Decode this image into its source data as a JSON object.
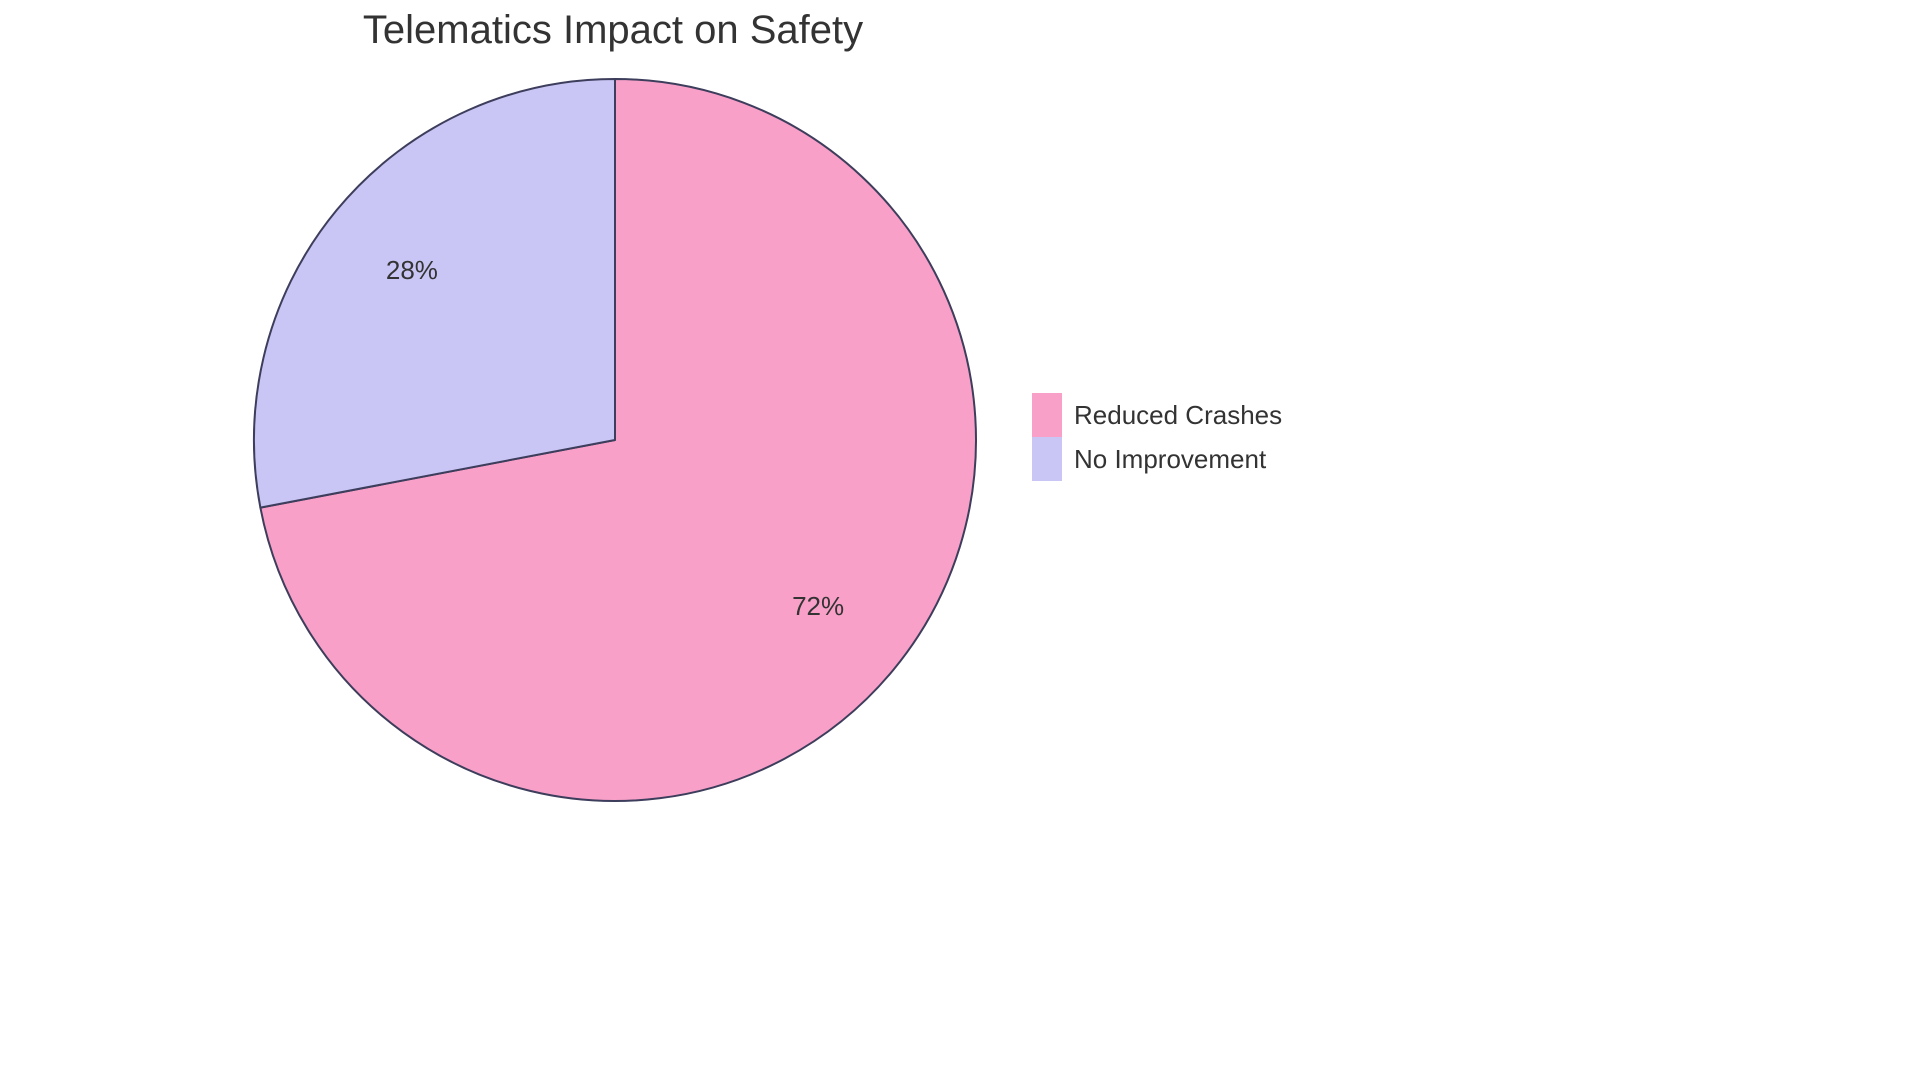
{
  "title": "Telematics Impact on Safety",
  "chart_data": {
    "type": "pie",
    "title": "Telematics Impact on Safety",
    "labels": [
      "Reduced Crashes",
      "No Improvement"
    ],
    "values": [
      72,
      28
    ],
    "value_labels": [
      "72%",
      "28%"
    ],
    "colors": [
      "#F9A0C9",
      "#C9C5F4"
    ],
    "stroke_color": "#3D3D5C",
    "start_angle_deg": 0,
    "direction": "clockwise",
    "legend_position": "right"
  },
  "legend": {
    "items": [
      {
        "label": "Reduced Crashes",
        "color": "#F9A0C9"
      },
      {
        "label": "No Improvement",
        "color": "#C9C5F4"
      }
    ]
  }
}
